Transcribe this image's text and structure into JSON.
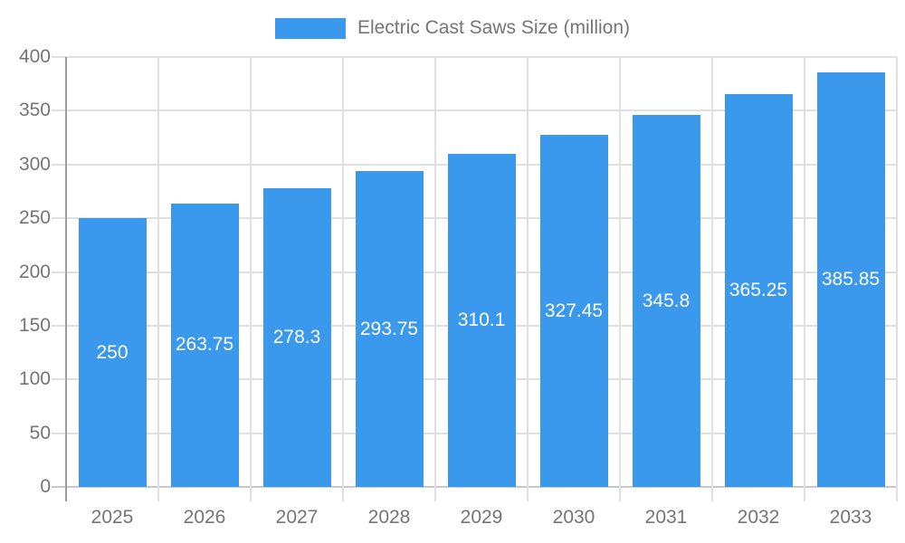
{
  "chart_data": {
    "type": "bar",
    "title": "Electric Cast Saws Size (million)",
    "legend_position": "top",
    "categories": [
      "2025",
      "2026",
      "2027",
      "2028",
      "2029",
      "2030",
      "2031",
      "2032",
      "2033"
    ],
    "series": [
      {
        "name": "Electric Cast Saws Size (million)",
        "values": [
          250,
          263.75,
          278.3,
          293.75,
          310.1,
          327.45,
          345.8,
          365.25,
          385.85
        ]
      }
    ],
    "bar_value_labels": [
      "250",
      "263.75",
      "278.3",
      "293.75",
      "310.1",
      "327.45",
      "345.8",
      "365.25",
      "385.85"
    ],
    "xlabel": "",
    "ylabel": "",
    "ylim": [
      0,
      400
    ],
    "yticks": [
      0,
      50,
      100,
      150,
      200,
      250,
      300,
      350,
      400
    ],
    "grid": true,
    "colors": {
      "bar": "#3B99ED",
      "bar_label_text": "#FFFFFF",
      "axis_text": "#757575",
      "gridline": "#E0E0E0",
      "zero_line": "#C9C9C9",
      "axis_line": "#9E9E9E",
      "background": "#FFFFFF"
    }
  }
}
